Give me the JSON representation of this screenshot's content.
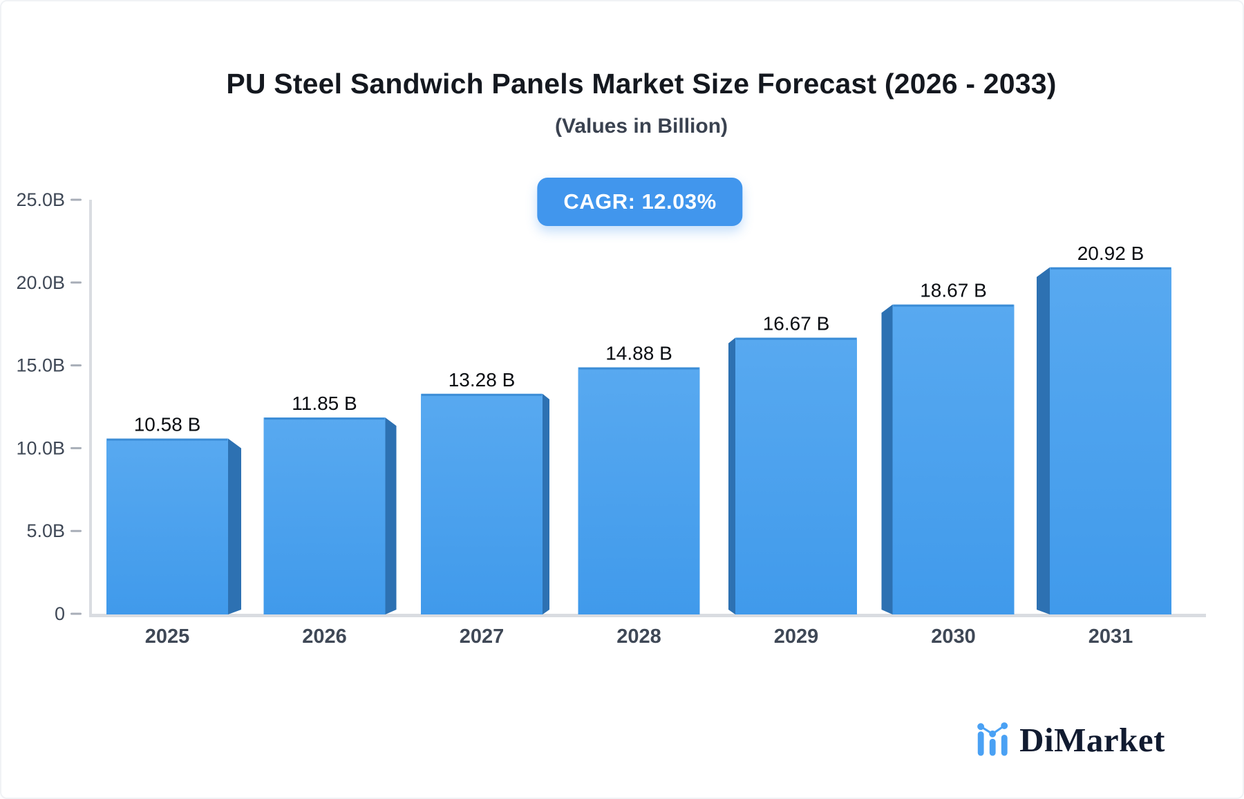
{
  "header": {
    "title": "PU Steel Sandwich Panels Market Size Forecast (2026 - 2033)",
    "subtitle": "(Values in Billion)",
    "cagr_badge": "CAGR: 12.03%"
  },
  "chart_data": {
    "type": "bar",
    "categories": [
      "2025",
      "2026",
      "2027",
      "2028",
      "2029",
      "2030",
      "2031"
    ],
    "values": [
      10.58,
      11.85,
      13.28,
      14.88,
      16.67,
      18.67,
      20.92
    ],
    "value_labels": [
      "10.58 B",
      "11.85 B",
      "13.28 B",
      "14.88 B",
      "16.67 B",
      "18.67 B",
      "20.92 B"
    ],
    "y_ticks": [
      0,
      5,
      10,
      15,
      20,
      25
    ],
    "y_tick_labels": [
      "0",
      "5.0B",
      "10.0B",
      "15.0B",
      "20.0B",
      "25.0B"
    ],
    "ylim": [
      0,
      25
    ],
    "xlabel": "",
    "ylabel": "",
    "legend": null,
    "grid": false,
    "colors": {
      "bar_gradient_top": "#58A9F0",
      "bar_gradient_bottom": "#409AEB",
      "bar_top_edge": "#3787D2",
      "bar_side": "#2D71B2",
      "axis_line": "#D9DCE1",
      "tick_dash": "#A8AEB8",
      "tick_text": "#3F4856",
      "value_text": "#0A0D12",
      "accent": "#4196ED"
    }
  },
  "footer": {
    "brand": "DiMarket",
    "brand_icon": "mini-bar-line-chart-icon",
    "brand_icon_color": "#4AA1F4",
    "brand_text_color": "#111B30"
  }
}
